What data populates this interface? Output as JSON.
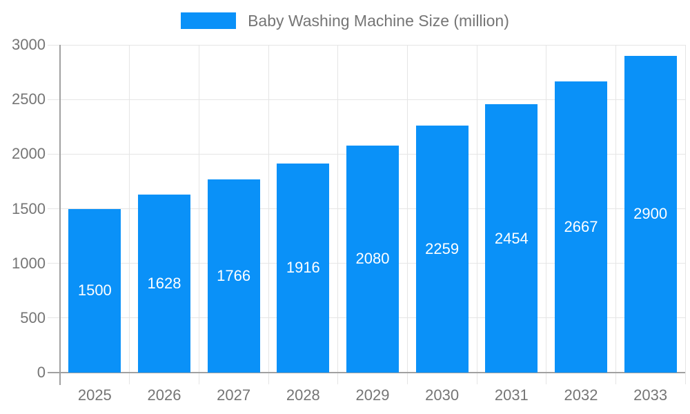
{
  "chart_data": {
    "type": "bar",
    "title": "Baby Washing Machine Size (million)",
    "legend_entries": [
      "Baby Washing Machine Size (million)"
    ],
    "legend_position": "top-center",
    "categories": [
      "2025",
      "2026",
      "2027",
      "2028",
      "2029",
      "2030",
      "2031",
      "2032",
      "2033"
    ],
    "series": [
      {
        "name": "Baby Washing Machine Size (million)",
        "values": [
          1500,
          1628,
          1766,
          1916,
          2080,
          2259,
          2454,
          2667,
          2900
        ]
      }
    ],
    "data_labels_position": "inside-center",
    "xlabel": "",
    "ylabel": "",
    "ylim": [
      0,
      3000
    ],
    "yticks": [
      0,
      500,
      1000,
      1500,
      2000,
      2500,
      3000
    ],
    "grid": true,
    "colors": {
      "bar": "#0A91F8",
      "gridline": "#E5E5E5",
      "axis_line": "#A0A0A0",
      "tick_label": "#757575",
      "data_label": "#FFFFFF",
      "background": "#FFFFFF"
    }
  }
}
